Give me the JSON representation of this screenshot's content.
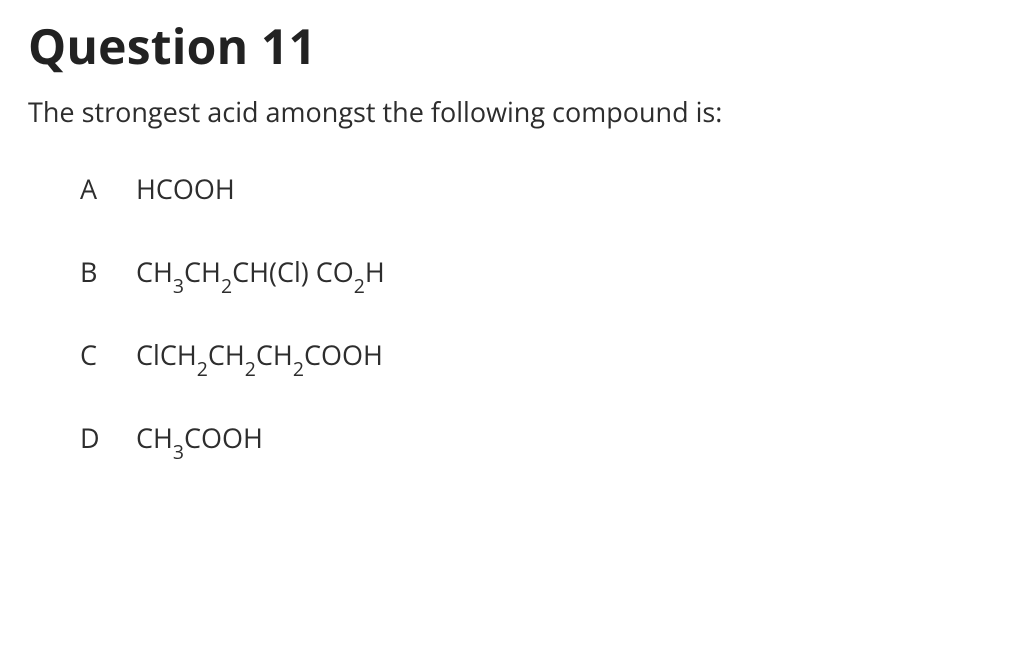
{
  "question": {
    "title": "Question 11",
    "prompt": "The strongest acid amongst the following compound is:",
    "title_fontsize": 48,
    "title_color": "#222222",
    "prompt_fontsize": 27,
    "prompt_color": "#2d2d2d",
    "background_color": "#ffffff"
  },
  "options": [
    {
      "letter": "A",
      "tokens": [
        {
          "t": "HCOOH",
          "sub": false
        }
      ]
    },
    {
      "letter": "B",
      "tokens": [
        {
          "t": "CH",
          "sub": false
        },
        {
          "t": "3",
          "sub": true
        },
        {
          "t": "CH",
          "sub": false
        },
        {
          "t": "2",
          "sub": true
        },
        {
          "t": "CH(Cl) CO",
          "sub": false
        },
        {
          "t": "2",
          "sub": true
        },
        {
          "t": "H",
          "sub": false
        }
      ]
    },
    {
      "letter": "C",
      "tokens": [
        {
          "t": "ClCH",
          "sub": false
        },
        {
          "t": "2",
          "sub": true
        },
        {
          "t": "CH",
          "sub": false
        },
        {
          "t": "2",
          "sub": true
        },
        {
          "t": "CH",
          "sub": false
        },
        {
          "t": "2",
          "sub": true
        },
        {
          "t": "COOH",
          "sub": false
        }
      ]
    },
    {
      "letter": "D",
      "tokens": [
        {
          "t": "CH",
          "sub": false
        },
        {
          "t": "3",
          "sub": true
        },
        {
          "t": "COOH",
          "sub": false
        }
      ]
    }
  ]
}
